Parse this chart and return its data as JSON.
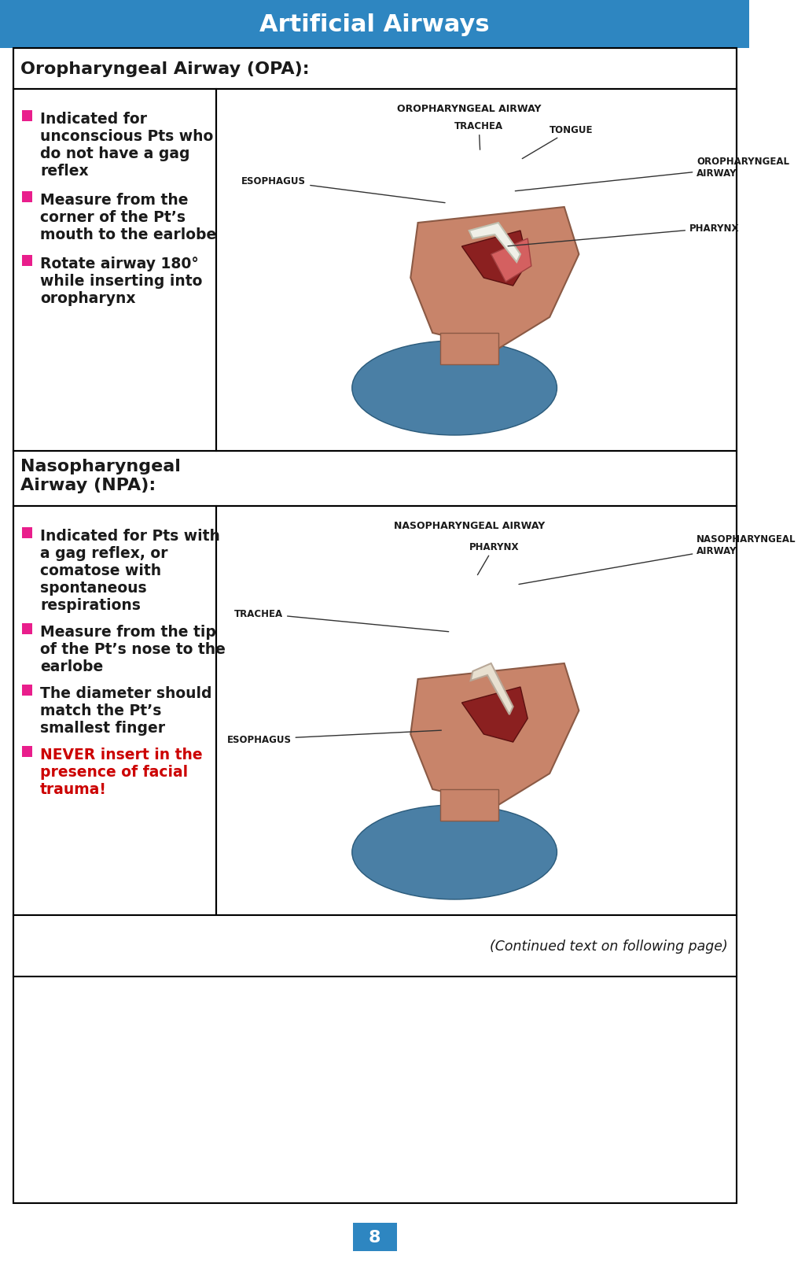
{
  "title": "Artificial Airways",
  "title_bg": "#2E86C1",
  "title_color": "#FFFFFF",
  "title_fontsize": 22,
  "border_color": "#000000",
  "bg_color": "#FFFFFF",
  "section1_header": "Oropharyngeal Airway (OPA):",
  "section2_header": "Nasopharyngeal\nAirway (NPA):",
  "bullet_color": "#E91E8C",
  "bullet_size": 14,
  "text_color": "#1a1a1a",
  "text_fontsize": 13.5,
  "header_fontsize": 16,
  "opa_bullets": [
    "Indicated for\nunconscious Pts who\ndo not have a gag\nreflex",
    "Measure from the\ncorner of the Pt’s\nmouth to the earlobe",
    "Rotate airway 180°\nwhile inserting into\noropharynx"
  ],
  "npa_bullets": [
    "Indicated for Pts with\na gag reflex, or\ncomatose with\nspontaneous\nrespirations",
    "Measure from the tip\nof the Pt’s nose to the\nearlobe",
    "The diameter should\nmatch the Pt’s\nsmallest finger",
    "NEVER insert in the\npresence of facial\ntrauma!"
  ],
  "npa_last_bullet_color": "#CC0000",
  "npa_last_bullet_bold": true,
  "continued_text": "(Continued text on following page)",
  "page_number": "8",
  "page_bg": "#2E86C1",
  "page_color": "#FFFFFF",
  "opa_image_labels": [
    "OROPHARYNGEAL AIRWAY",
    "TRACHEA",
    "TONGUE",
    "ESOPHAGUS",
    "OROPHARYNGEAL\nAIRWAY",
    "PHARYNX"
  ],
  "npa_image_labels": [
    "NASOPHARYNGEAL AIRWAY",
    "PHARYNX",
    "NASOPHARYNGEAL\nAIRWAY",
    "TRACHEA",
    "ESOPHAGUS"
  ]
}
